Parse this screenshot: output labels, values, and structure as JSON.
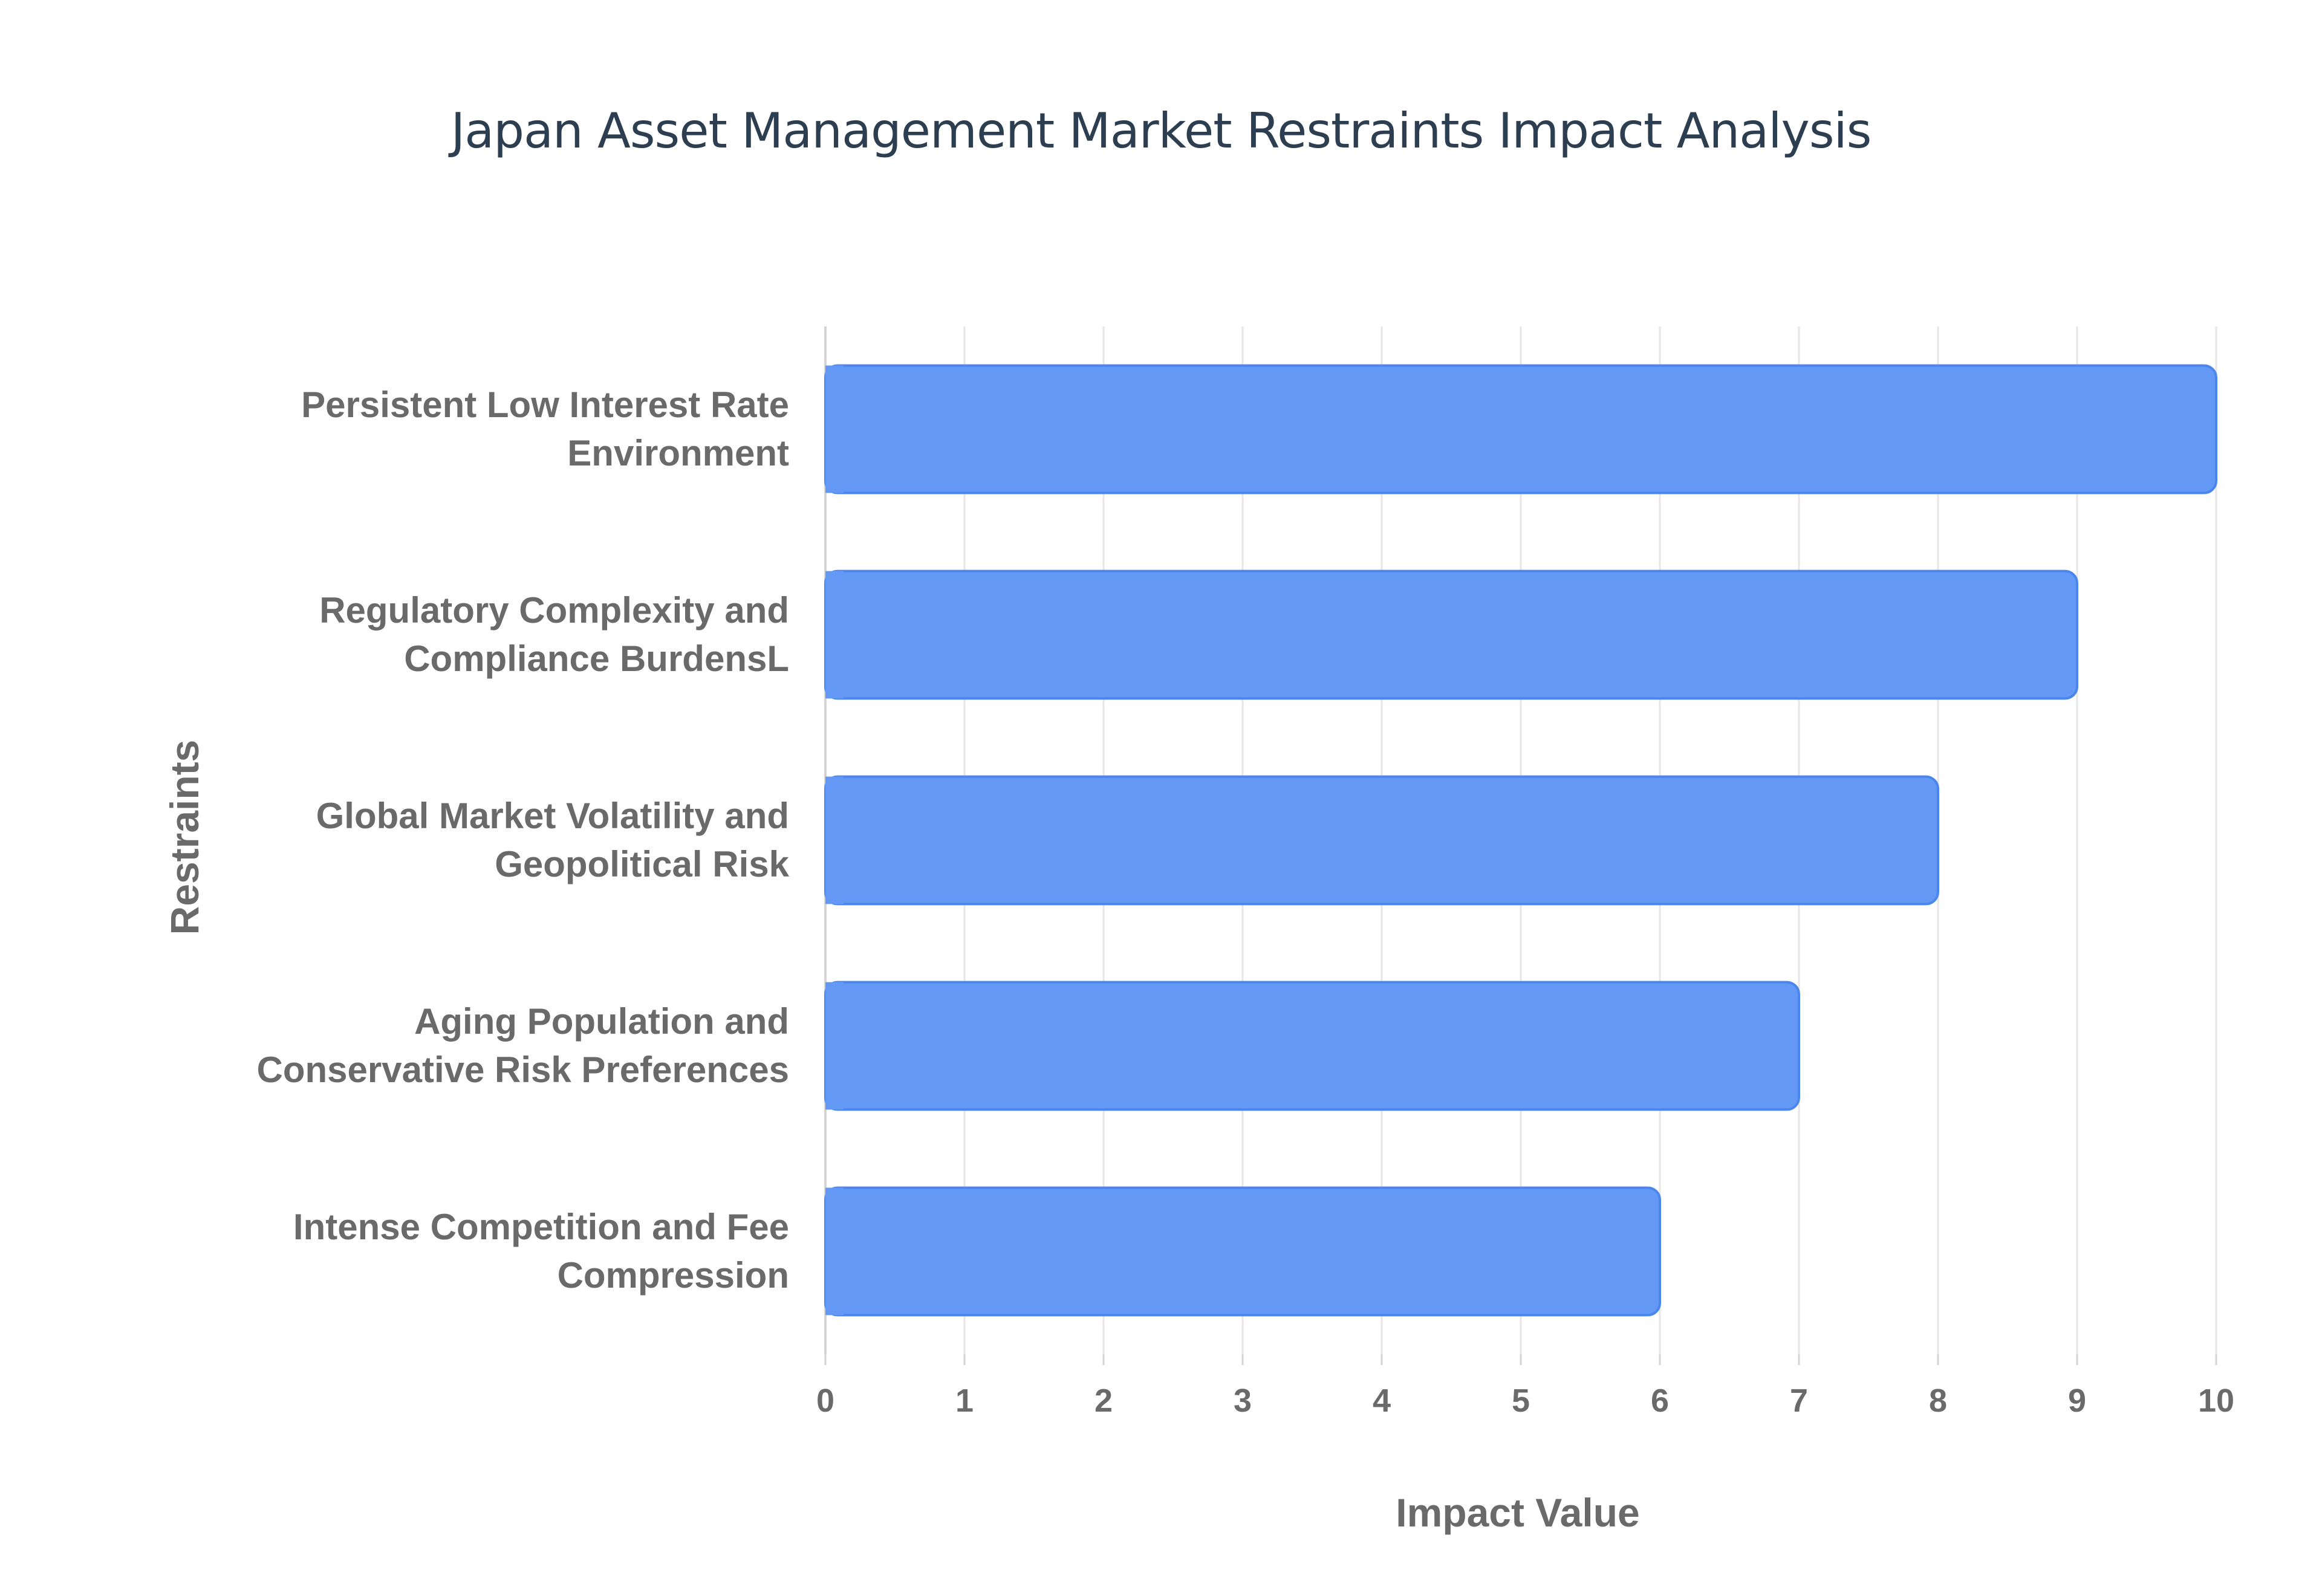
{
  "chart_data": {
    "type": "bar",
    "orientation": "horizontal",
    "title": "Japan Asset Management Market Restraints Impact Analysis",
    "xlabel": "Impact Value",
    "ylabel": "Restraints",
    "xlim": [
      0,
      10
    ],
    "x_ticks": [
      0,
      1,
      2,
      3,
      4,
      5,
      6,
      7,
      8,
      9,
      10
    ],
    "grid": true,
    "legend": "none",
    "categories": [
      [
        "Persistent Low Interest Rate",
        "Environment"
      ],
      [
        "Regulatory Complexity and",
        "Compliance BurdensL"
      ],
      [
        "Global Market Volatility and",
        "Geopolitical Risk"
      ],
      [
        "Aging Population and",
        "Conservative Risk Preferences"
      ],
      [
        "Intense Competition and Fee",
        "Compression"
      ]
    ],
    "values": [
      10,
      9,
      8,
      7,
      6
    ],
    "colors": {
      "bar_fill": "#6399f5",
      "bar_stroke": "#4a86ee",
      "grid": "#e6e6e6",
      "axis": "#d4d4d4",
      "tick_text": "#6a6a6a",
      "title": "#2c3e50"
    }
  }
}
